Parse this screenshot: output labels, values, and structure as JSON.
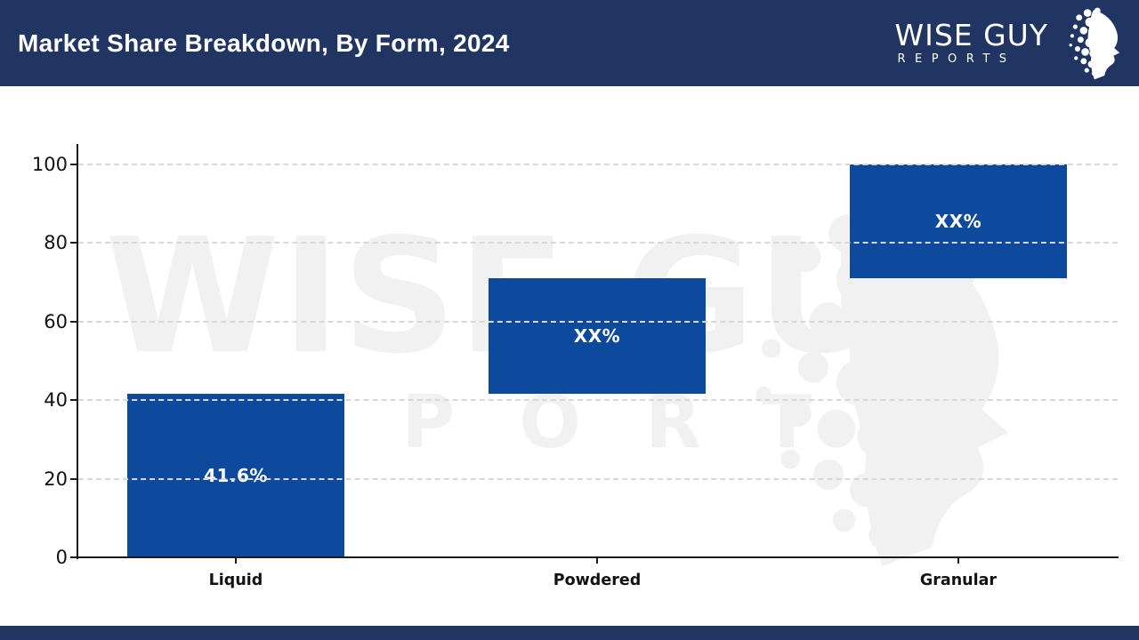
{
  "header": {
    "title": "Market Share Breakdown, By Form, 2024",
    "bg_color": "#213563",
    "logo": {
      "line1": "WISE GUY",
      "line2": "REPORTS"
    }
  },
  "watermark": {
    "line1": "WISE GUY",
    "line2": "REPORTS"
  },
  "chart_data": {
    "type": "bar",
    "subtype": "floating-waterfall",
    "title": "Market Share Breakdown, By Form, 2024",
    "categories": [
      "Liquid",
      "Powdered",
      "Granular"
    ],
    "bars": [
      {
        "category": "Liquid",
        "start": 0,
        "end": 41.6,
        "label": "41.6%"
      },
      {
        "category": "Powdered",
        "start": 41.6,
        "end": 71,
        "label": "XX%"
      },
      {
        "category": "Granular",
        "start": 71,
        "end": 100,
        "label": "XX%"
      }
    ],
    "yticks": [
      0,
      20,
      40,
      60,
      80,
      100
    ],
    "ylim": [
      0,
      104.5
    ],
    "bar_color": "#0d4a9e",
    "bar_label_color": "#ffffff",
    "grid": "horizontal dashed #d8d8d8, drawn over bars",
    "legend": "none",
    "xlabel": "",
    "ylabel": ""
  }
}
